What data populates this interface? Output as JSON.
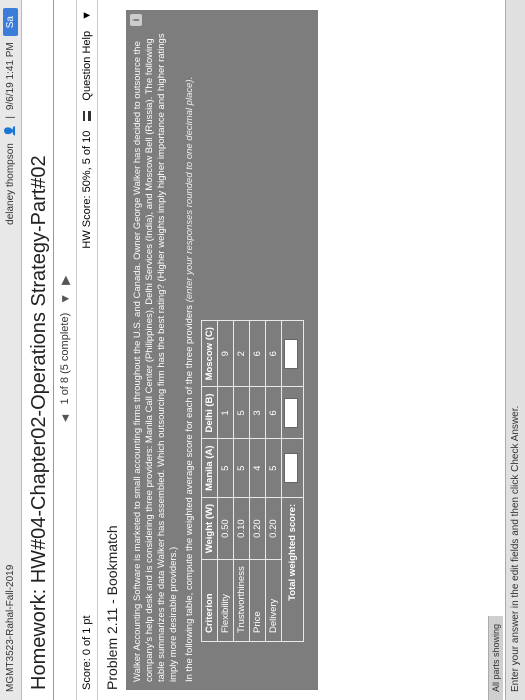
{
  "topbar": {
    "course": "MGMT3523-Rahal-Fall-2019",
    "user": "delaney thompson",
    "icon": "user-icon",
    "datetime": "9/6/19 1:41 PM",
    "save": "Sa"
  },
  "hw_title": "Homework: HW#04-Chapter02-Operations Strategy-Part#02",
  "progress": {
    "prev": "◄",
    "label": "1 of 8 (5 complete)",
    "next": "▶",
    "dropdown": "▼"
  },
  "score_row": {
    "left": "Score: 0 of 1 pt",
    "hw_score": "HW Score: 50%, 5 of 10",
    "help": "Question Help",
    "dropdown": "▼"
  },
  "problem_title": "Problem 2.11 - Bookmatch",
  "panel": {
    "p1": "Walker Accounting Software is marketed to small accounting firms throughout the U.S. and Canada. Owner George Walker has decided to outsource the company's help desk and is considering three providers: Manila Call Center (Philippines), Delhi Services (India), and Moscow Bell (Russia). The following table summarizes the data Walker has assembled. Which outsourcing firm has the best rating? (Higher weights imply higher importance and higher ratings imply more desirable providers.)",
    "p2_a": "In the following table, compute the weighted average score for each of the three providers ",
    "p2_b": "(enter your responses rounded to one decimal place)"
  },
  "table": {
    "headers": [
      "Criterion",
      "Weight (W)",
      "Manila (A)",
      "Delhi (B)",
      "Moscow (C)"
    ],
    "rows": [
      {
        "criterion": "Flexibility",
        "w": "0.50",
        "a": "5",
        "b": "1",
        "c": "9"
      },
      {
        "criterion": "Trustworthiness",
        "w": "0.10",
        "a": "5",
        "b": "5",
        "c": "2"
      },
      {
        "criterion": "Price",
        "w": "0.20",
        "a": "4",
        "b": "3",
        "c": "6"
      },
      {
        "criterion": "Delivery",
        "w": "0.20",
        "a": "5",
        "b": "6",
        "c": "6"
      }
    ],
    "total_label": "Total weighted score:"
  },
  "allparts": "All parts showing",
  "bottombar": "Enter your answer in the edit fields and then click Check Answer."
}
